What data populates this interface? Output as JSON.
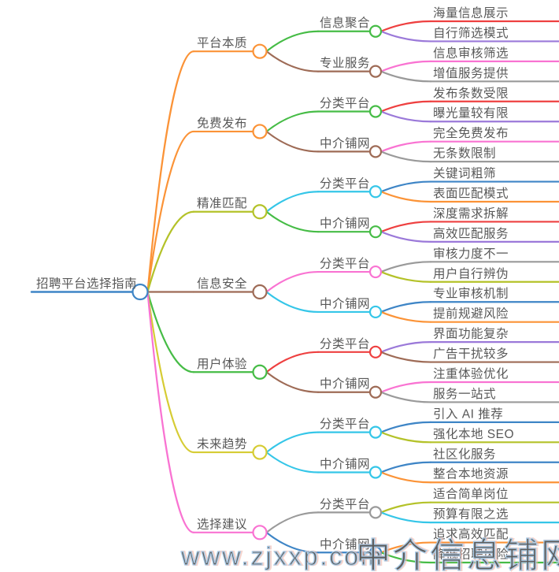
{
  "palette": {
    "orange": "#fb9337",
    "green": "#46bc46",
    "brown": "#9e6b56",
    "red": "#ee4040",
    "purple": "#9b79d9",
    "pink": "#f973d2",
    "gray": "#9a9a9a",
    "cyan": "#35c6e8",
    "blue": "#3e85c6",
    "olive": "#b4c229",
    "yellow": "#d6cc34",
    "text": "#585858",
    "watermark_blue": "#a6cbe8",
    "watermark_pink": "#f2b3a6"
  },
  "root": {
    "label": "招聘平台选择指南",
    "color": "blue"
  },
  "branches": [
    {
      "label": "平台本质",
      "color": "orange",
      "children": [
        {
          "label": "信息聚合",
          "color": "green",
          "leaves": [
            {
              "label": "海量信息展示",
              "color": "red"
            },
            {
              "label": "自行筛选模式",
              "color": "purple"
            }
          ]
        },
        {
          "label": "专业服务",
          "color": "brown",
          "leaves": [
            {
              "label": "信息审核筛选",
              "color": "pink"
            },
            {
              "label": "增值服务提供",
              "color": "gray"
            }
          ]
        }
      ]
    },
    {
      "label": "免费发布",
      "color": "orange",
      "children": [
        {
          "label": "分类平台",
          "color": "green",
          "leaves": [
            {
              "label": "发布条数受限",
              "color": "red"
            },
            {
              "label": "曝光量较有限",
              "color": "purple"
            }
          ]
        },
        {
          "label": "中介铺网",
          "color": "brown",
          "leaves": [
            {
              "label": "完全免费发布",
              "color": "pink"
            },
            {
              "label": "无条数限制",
              "color": "gray"
            }
          ]
        }
      ]
    },
    {
      "label": "精准匹配",
      "color": "olive",
      "children": [
        {
          "label": "分类平台",
          "color": "cyan",
          "leaves": [
            {
              "label": "关键词粗筛",
              "color": "blue"
            },
            {
              "label": "表面匹配模式",
              "color": "orange"
            }
          ]
        },
        {
          "label": "中介铺网",
          "color": "green",
          "leaves": [
            {
              "label": "深度需求拆解",
              "color": "red"
            },
            {
              "label": "高效匹配服务",
              "color": "purple"
            }
          ]
        }
      ]
    },
    {
      "label": "信息安全",
      "color": "brown",
      "children": [
        {
          "label": "分类平台",
          "color": "pink",
          "leaves": [
            {
              "label": "审核力度不一",
              "color": "gray"
            },
            {
              "label": "用户自行辨伪",
              "color": "olive"
            }
          ]
        },
        {
          "label": "中介铺网",
          "color": "cyan",
          "leaves": [
            {
              "label": "专业审核机制",
              "color": "blue"
            },
            {
              "label": "提前规避风险",
              "color": "orange"
            }
          ]
        }
      ]
    },
    {
      "label": "用户体验",
      "color": "green",
      "children": [
        {
          "label": "分类平台",
          "color": "red",
          "leaves": [
            {
              "label": "界面功能复杂",
              "color": "purple"
            },
            {
              "label": "广告干扰较多",
              "color": "brown"
            }
          ]
        },
        {
          "label": "中介铺网",
          "color": "brown",
          "leaves": [
            {
              "label": "注重体验优化",
              "color": "pink"
            },
            {
              "label": "服务一站式",
              "color": "gray"
            }
          ]
        }
      ]
    },
    {
      "label": "未来趋势",
      "color": "yellow",
      "children": [
        {
          "label": "分类平台",
          "color": "cyan",
          "leaves": [
            {
              "label": "引入 AI 推荐",
              "color": "blue"
            },
            {
              "label": "强化本地 SEO",
              "color": "olive"
            }
          ]
        },
        {
          "label": "中介铺网",
          "color": "cyan",
          "leaves": [
            {
              "label": "社区化服务",
              "color": "blue"
            },
            {
              "label": "整合本地资源",
              "color": "orange"
            }
          ]
        }
      ]
    },
    {
      "label": "选择建议",
      "color": "pink",
      "children": [
        {
          "label": "分类平台",
          "color": "gray",
          "leaves": [
            {
              "label": "适合简单岗位",
              "color": "olive"
            },
            {
              "label": "预算有限之选",
              "color": "cyan"
            }
          ]
        },
        {
          "label": "中介铺网",
          "color": "blue",
          "leaves": [
            {
              "label": "追求高效匹配",
              "color": "orange"
            },
            {
              "label": "降低招聘风险",
              "color": "green"
            }
          ]
        }
      ]
    }
  ],
  "watermark": {
    "url_text": "www.zjxxp.com",
    "cn_text": "中介信息铺网"
  }
}
